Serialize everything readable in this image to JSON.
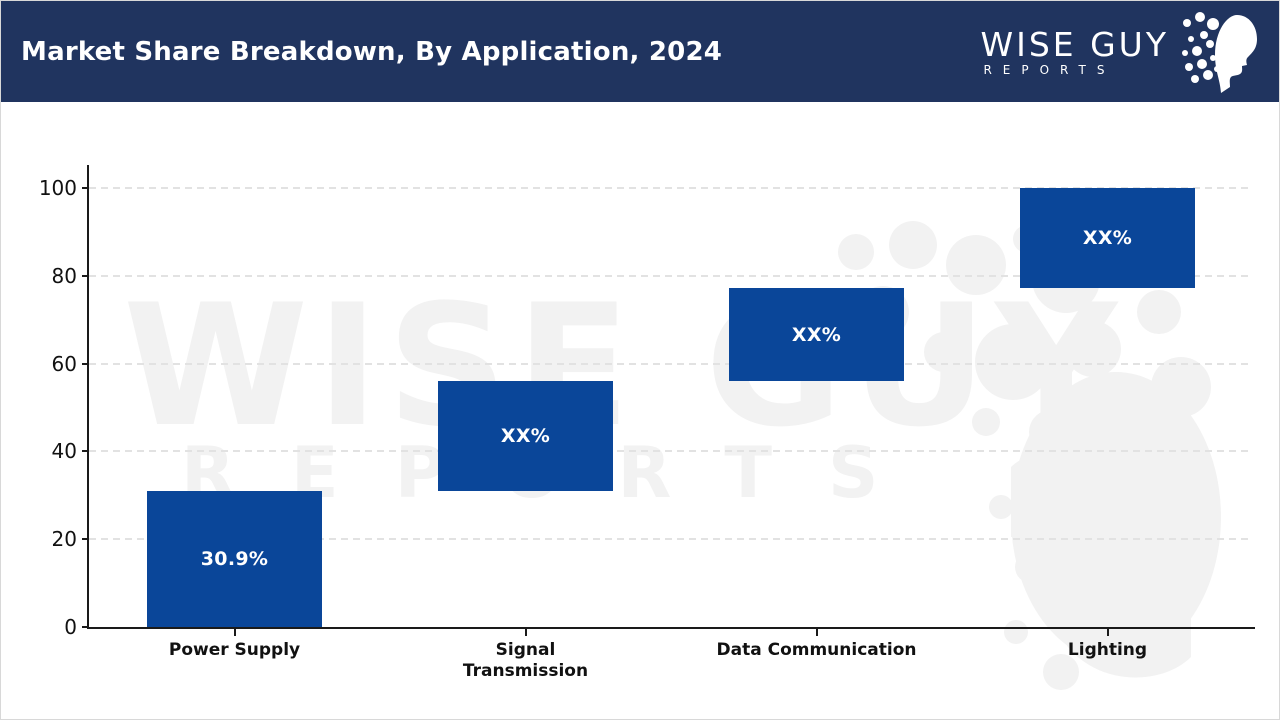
{
  "header": {
    "title": "Market Share Breakdown, By Application, 2024",
    "logo": {
      "wordmark": "WISE GUY",
      "subtext": "REPORTS",
      "icon": "dotted-profile-face-icon"
    }
  },
  "watermark": {
    "wordmark": "WISE GUY",
    "subtext": "REPORTS",
    "icon": "dotted-profile-face-icon"
  },
  "colors": {
    "header_bg": "#20345f",
    "header_text": "#ffffff",
    "bar": "#0a4699",
    "bar_label": "#ffffff",
    "grid": "#e2e2e2",
    "axis": "#1a1a1a",
    "tick_text": "#111111",
    "watermark": "#f2f2f2",
    "frame_border": "#d8d8d8"
  },
  "chart_data": {
    "type": "bar",
    "subtype": "waterfall",
    "title": "Market Share Breakdown, By Application, 2024",
    "xlabel": "",
    "ylabel": "",
    "ylim": [
      0,
      100
    ],
    "yticks": [
      0,
      20,
      40,
      60,
      80,
      100
    ],
    "grid": "horizontal-dashed",
    "legend": "none",
    "categories": [
      "Power Supply",
      "Signal\nTransmission",
      "Data Communication",
      "Lighting"
    ],
    "segments": [
      {
        "category": "Power Supply",
        "start": 0,
        "end": 30.9,
        "label": "30.9%"
      },
      {
        "category": "Signal Transmission",
        "start": 30.9,
        "end": 56.0,
        "label": "XX%"
      },
      {
        "category": "Data Communication",
        "start": 56.0,
        "end": 77.2,
        "label": "XX%"
      },
      {
        "category": "Lighting",
        "start": 77.2,
        "end": 100.0,
        "label": "XX%"
      }
    ]
  }
}
